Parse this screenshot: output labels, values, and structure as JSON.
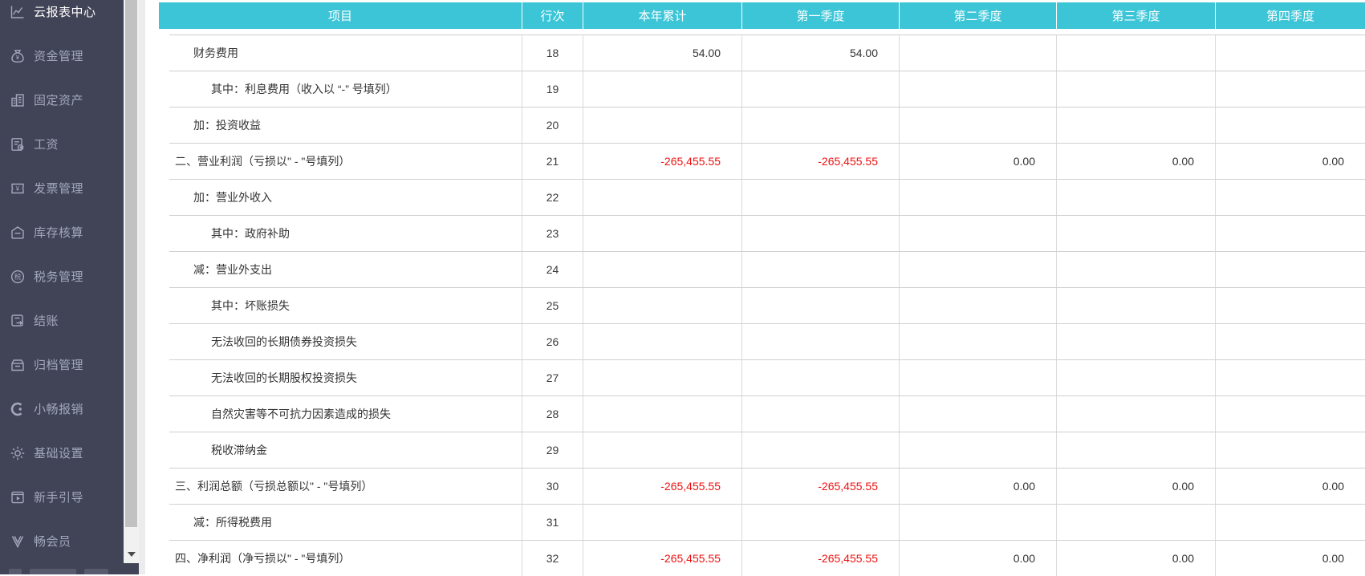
{
  "colors": {
    "sidebar_bg": "#414456",
    "sidebar_text": "#a2a7bc",
    "header_teal": "#3bc5d7",
    "negative_red": "#ee1111",
    "row_border": "#d0d0d0"
  },
  "sidebar": {
    "items": [
      {
        "label": "云报表中心",
        "icon": "line-chart"
      },
      {
        "label": "资金管理",
        "icon": "money-bag"
      },
      {
        "label": "固定资产",
        "icon": "building"
      },
      {
        "label": "工资",
        "icon": "payroll-sheet"
      },
      {
        "label": "发票管理",
        "icon": "invoice"
      },
      {
        "label": "库存核算",
        "icon": "warehouse"
      },
      {
        "label": "税务管理",
        "icon": "tax-coin"
      },
      {
        "label": "结账",
        "icon": "closing-book"
      },
      {
        "label": "归档管理",
        "icon": "archive-box"
      },
      {
        "label": "小畅报销",
        "icon": "reimburse-logo"
      },
      {
        "label": "基础设置",
        "icon": "gear"
      },
      {
        "label": "新手引导",
        "icon": "guide-video"
      },
      {
        "label": "畅会员",
        "icon": "member-v"
      }
    ]
  },
  "table": {
    "columns": [
      "项目",
      "行次",
      "本年累计",
      "第一季度",
      "第二季度",
      "第三季度",
      "第四季度"
    ],
    "rows": [
      {
        "name": "财务费用",
        "indent": 1,
        "line": "18",
        "vals": [
          "54.00",
          "54.00",
          "",
          "",
          ""
        ]
      },
      {
        "name": "其中：利息费用（收入以 “-” 号填列）",
        "indent": 2,
        "line": "19",
        "vals": [
          "",
          "",
          "",
          "",
          ""
        ]
      },
      {
        "name": "加：投资收益",
        "indent": 1,
        "line": "20",
        "vals": [
          "",
          "",
          "",
          "",
          ""
        ]
      },
      {
        "name": "二、营业利润（亏损以\" - \"号填列）",
        "indent": 0,
        "line": "21",
        "vals": [
          "-265,455.55",
          "-265,455.55",
          "0.00",
          "0.00",
          "0.00"
        ]
      },
      {
        "name": "加：营业外收入",
        "indent": 1,
        "line": "22",
        "vals": [
          "",
          "",
          "",
          "",
          ""
        ]
      },
      {
        "name": "其中：政府补助",
        "indent": 2,
        "line": "23",
        "vals": [
          "",
          "",
          "",
          "",
          ""
        ]
      },
      {
        "name": "减：营业外支出",
        "indent": 1,
        "line": "24",
        "vals": [
          "",
          "",
          "",
          "",
          ""
        ]
      },
      {
        "name": "其中：坏账损失",
        "indent": 2,
        "line": "25",
        "vals": [
          "",
          "",
          "",
          "",
          ""
        ]
      },
      {
        "name": "无法收回的长期债券投资损失",
        "indent": 2,
        "line": "26",
        "vals": [
          "",
          "",
          "",
          "",
          ""
        ]
      },
      {
        "name": "无法收回的长期股权投资损失",
        "indent": 2,
        "line": "27",
        "vals": [
          "",
          "",
          "",
          "",
          ""
        ]
      },
      {
        "name": "自然灾害等不可抗力因素造成的损失",
        "indent": 2,
        "line": "28",
        "vals": [
          "",
          "",
          "",
          "",
          ""
        ]
      },
      {
        "name": "税收滞纳金",
        "indent": 2,
        "line": "29",
        "vals": [
          "",
          "",
          "",
          "",
          ""
        ]
      },
      {
        "name": "三、利润总额（亏损总额以\" - \"号填列）",
        "indent": 0,
        "line": "30",
        "vals": [
          "-265,455.55",
          "-265,455.55",
          "0.00",
          "0.00",
          "0.00"
        ]
      },
      {
        "name": "减：所得税费用",
        "indent": 1,
        "line": "31",
        "vals": [
          "",
          "",
          "",
          "",
          ""
        ]
      },
      {
        "name": "四、净利润（净亏损以\" - \"号填列）",
        "indent": 0,
        "line": "32",
        "vals": [
          "-265,455.55",
          "-265,455.55",
          "0.00",
          "0.00",
          "0.00"
        ]
      }
    ]
  }
}
